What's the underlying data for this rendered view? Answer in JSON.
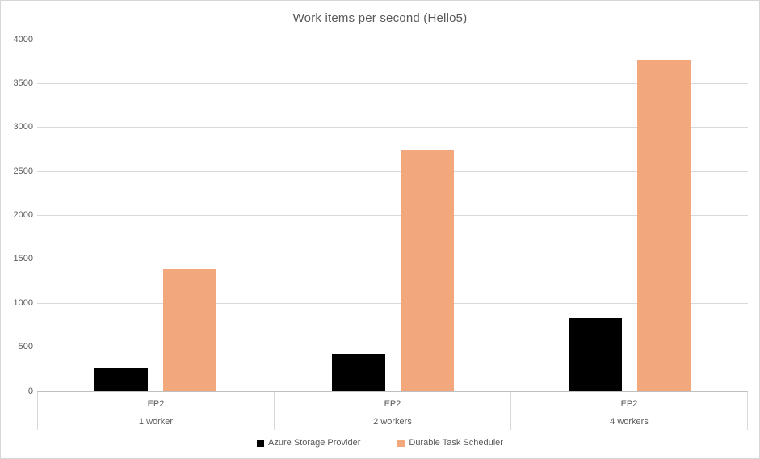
{
  "chart_data": {
    "type": "bar",
    "title": "Work items per second (Hello5)",
    "categories": [
      {
        "plan": "EP2",
        "workers": "1 worker"
      },
      {
        "plan": "EP2",
        "workers": "2 workers"
      },
      {
        "plan": "EP2",
        "workers": "4 workers"
      }
    ],
    "series": [
      {
        "name": "Azure Storage Provider",
        "color": "#000000",
        "values": [
          260,
          420,
          840
        ]
      },
      {
        "name": "Durable Task Scheduler",
        "color": "#f2a77c",
        "values": [
          1390,
          2740,
          3770
        ]
      }
    ],
    "xlabel": "",
    "ylabel": "",
    "ylim": [
      0,
      4000
    ],
    "ytick_step": 500,
    "grid": true,
    "legend_position": "bottom"
  },
  "colors": {
    "gridline": "#d9d9d9",
    "axis_line": "#bfbfbf",
    "text": "#595959",
    "border": "#d6d6d6"
  }
}
